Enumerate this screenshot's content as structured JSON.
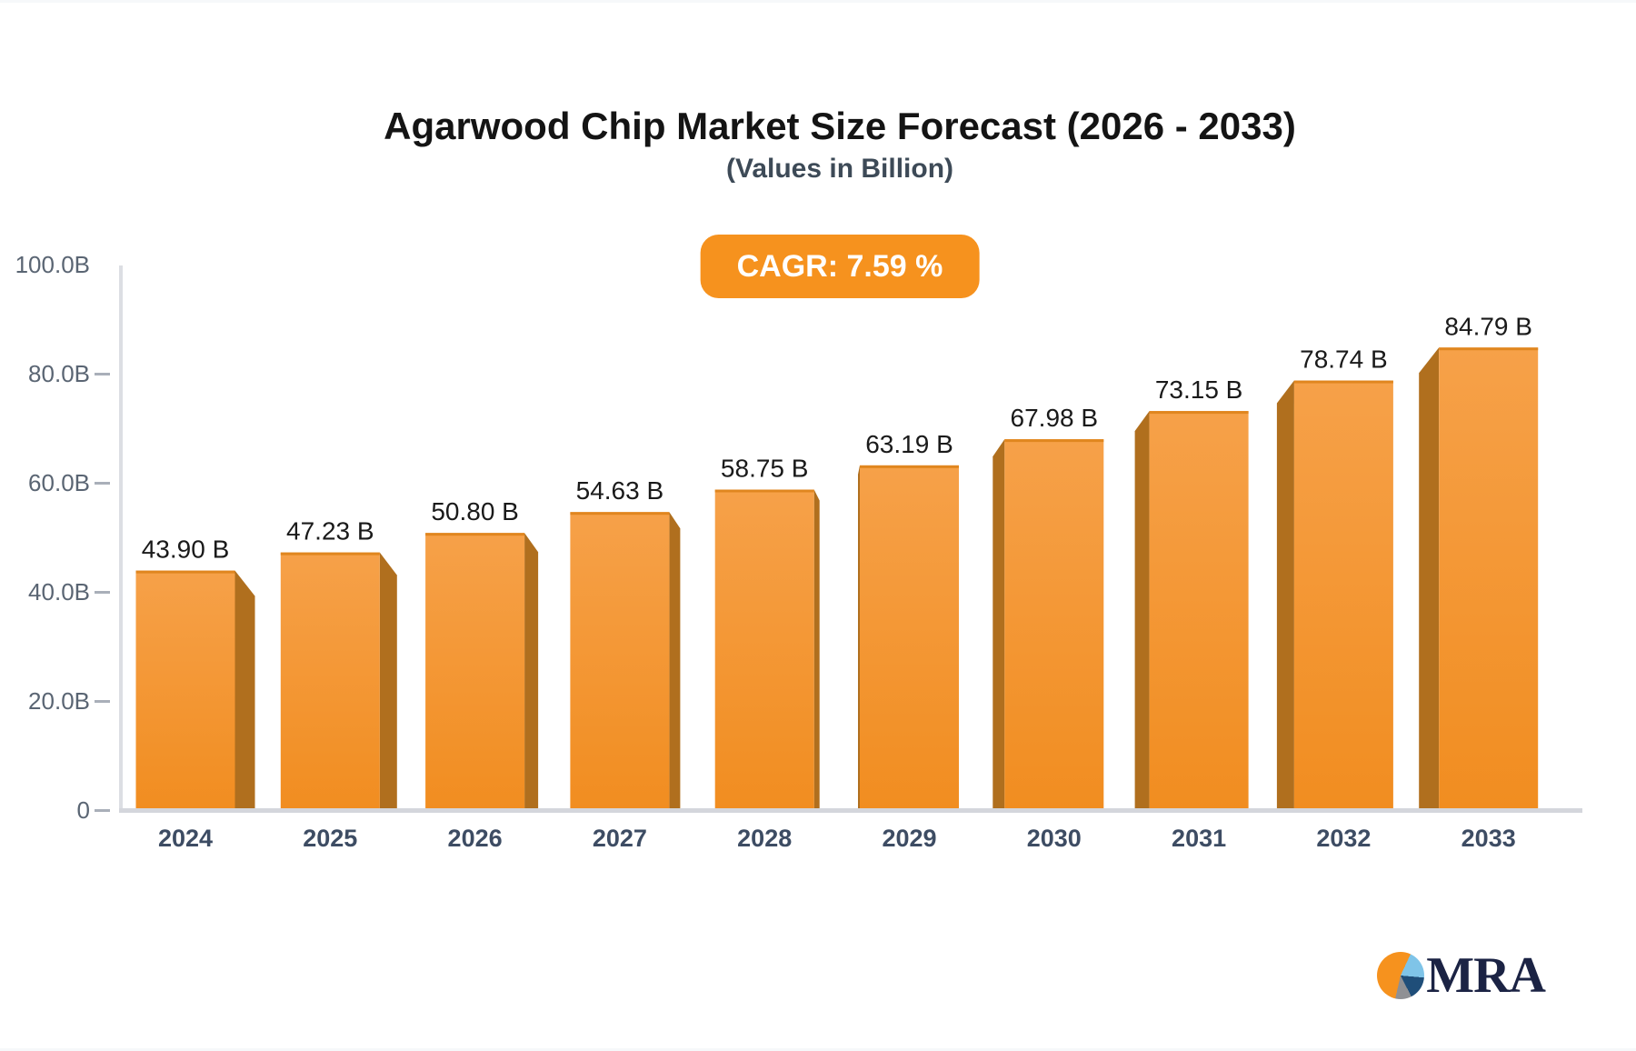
{
  "header": {
    "title": "Agarwood Chip Market Size Forecast (2026 - 2033)",
    "subtitle": "(Values in Billion)"
  },
  "badge": {
    "label": "CAGR: 7.59 %",
    "bg_color": "#F6921E",
    "text_color": "#FFFFFF"
  },
  "logo": {
    "text": "MRA",
    "text_color": "#1B2344",
    "pie_colors": {
      "orange": "#F6921E",
      "light_blue": "#7FC4E8",
      "navy": "#1F4E79",
      "gray": "#8F9094"
    }
  },
  "chart_data": {
    "type": "bar",
    "title": "Agarwood Chip Market Size Forecast (2026 - 2033)",
    "subtitle": "(Values in Billion)",
    "cagr_label": "CAGR: 7.59 %",
    "categories": [
      "2024",
      "2025",
      "2026",
      "2027",
      "2028",
      "2029",
      "2030",
      "2031",
      "2032",
      "2033"
    ],
    "values": [
      43.9,
      47.23,
      50.8,
      54.63,
      58.75,
      63.19,
      67.98,
      73.15,
      78.74,
      84.79
    ],
    "value_labels": [
      "43.90 B",
      "47.23 B",
      "50.80 B",
      "54.63 B",
      "58.75 B",
      "63.19 B",
      "67.98 B",
      "73.15 B",
      "78.74 B",
      "84.79 B"
    ],
    "yticks": [
      {
        "value": 100,
        "label": "100.0B"
      },
      {
        "value": 80,
        "label": "80.0B"
      },
      {
        "value": 60,
        "label": "60.0B"
      },
      {
        "value": 40,
        "label": "40.0B"
      },
      {
        "value": 20,
        "label": "20.0B"
      },
      {
        "value": 0,
        "label": "0"
      }
    ],
    "ylim": [
      0,
      100
    ],
    "xlabel": "",
    "ylabel": "",
    "grid": false,
    "legend": false,
    "colors": {
      "bar_face_top": "#F6A149",
      "bar_face_bottom": "#F18D20",
      "bar_side": "#B06F1E",
      "bar_top_edge": "#E0861F",
      "axis_line": "#DCDEE3",
      "baseline": "#D4D6DC",
      "tick_dash": "#A9AFB9",
      "tick_label": "#5A6573",
      "category_label": "#3D4C63",
      "value_label": "#1A1A1A"
    }
  }
}
